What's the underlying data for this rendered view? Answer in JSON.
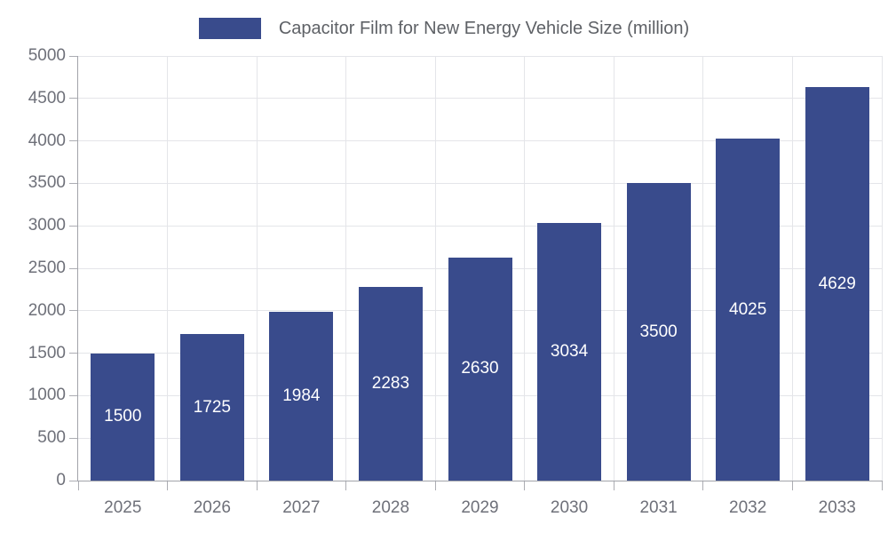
{
  "legend": {
    "label": "Capacitor Film for New Energy Vehicle Size (million)",
    "swatch_color": "#394B8C"
  },
  "chart_data": {
    "type": "bar",
    "title": "Capacitor Film for New Energy Vehicle Size (million)",
    "categories": [
      "2025",
      "2026",
      "2027",
      "2028",
      "2029",
      "2030",
      "2031",
      "2032",
      "2033"
    ],
    "values": [
      1500,
      1725,
      1984,
      2283,
      2630,
      3034,
      3500,
      4025,
      4629
    ],
    "series": [
      {
        "name": "Capacitor Film for New Energy Vehicle Size (million)",
        "values": [
          1500,
          1725,
          1984,
          2283,
          2630,
          3034,
          3500,
          4025,
          4629
        ]
      }
    ],
    "xlabel": "",
    "ylabel": "",
    "ylim": [
      0,
      5000
    ],
    "y_ticks": [
      0,
      500,
      1000,
      1500,
      2000,
      2500,
      3000,
      3500,
      4000,
      4500,
      5000
    ],
    "grid": true,
    "legend_position": "top",
    "bar_color": "#394B8C",
    "bar_label_color": "#FFFFFF"
  }
}
